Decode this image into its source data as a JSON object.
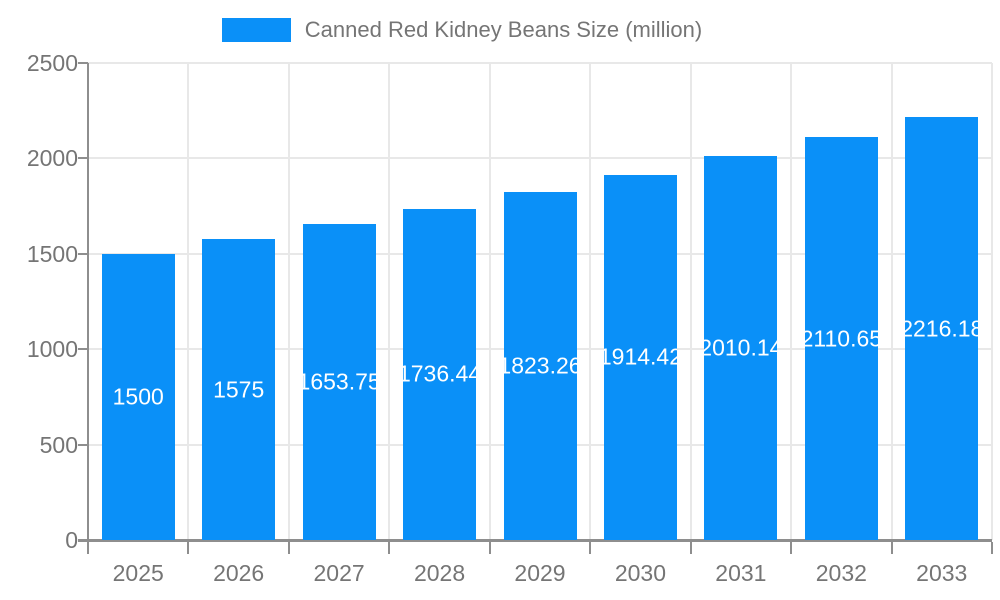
{
  "legend": {
    "label": "Canned Red Kidney Beans Size (million)"
  },
  "chart_data": {
    "type": "bar",
    "title": "Canned Red Kidney Beans Size (million)",
    "categories": [
      "2025",
      "2026",
      "2027",
      "2028",
      "2029",
      "2030",
      "2031",
      "2032",
      "2033"
    ],
    "values": [
      1500,
      1575,
      1653.75,
      1736.44,
      1823.26,
      1914.42,
      2010.14,
      2110.65,
      2216.18
    ],
    "bar_labels": [
      "1500",
      "1575",
      "1653.75",
      "1736.44",
      "1823.26",
      "1914.42",
      "2010.14",
      "2110.65",
      "2216.18"
    ],
    "xlabel": "",
    "ylabel": "",
    "ylim": [
      0,
      2500
    ],
    "yticks": [
      0,
      500,
      1000,
      1500,
      2000,
      2500
    ],
    "legend_position": "top-center",
    "grid": true,
    "bar_label_position": "center",
    "colors": {
      "bar": "#0a90f8",
      "grid": "#e8e8e8",
      "axis": "#8e8e8e",
      "text": "#757575",
      "bar_label": "#ffffff",
      "background": "#ffffff"
    }
  }
}
